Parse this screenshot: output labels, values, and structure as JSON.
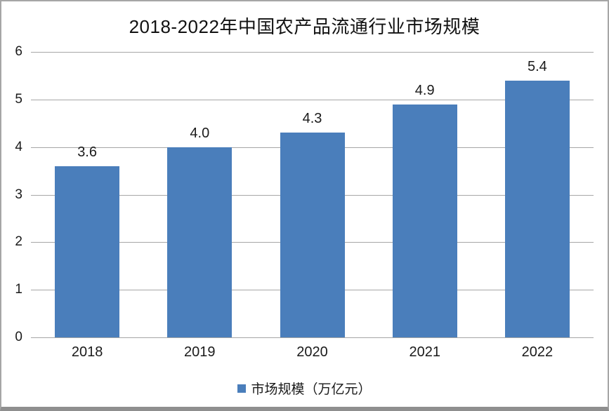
{
  "chart_data": {
    "type": "bar",
    "title": "2018-2022年中国农产品流通行业市场规模",
    "categories": [
      "2018",
      "2019",
      "2020",
      "2021",
      "2022"
    ],
    "series": [
      {
        "name": "市场规模（万亿元）",
        "values": [
          3.6,
          4.0,
          4.3,
          4.9,
          5.4
        ]
      }
    ],
    "data_labels": [
      "3.6",
      "4.0",
      "4.3",
      "4.9",
      "5.4"
    ],
    "ylim": [
      0,
      6
    ],
    "yticks": [
      0,
      1,
      2,
      3,
      4,
      5,
      6
    ],
    "grid": true,
    "legend_position": "bottom",
    "bar_color": "#4a7ebb",
    "gridline_color": "#a6a6a6"
  },
  "legend": {
    "label": "市场规模（万亿元）"
  }
}
